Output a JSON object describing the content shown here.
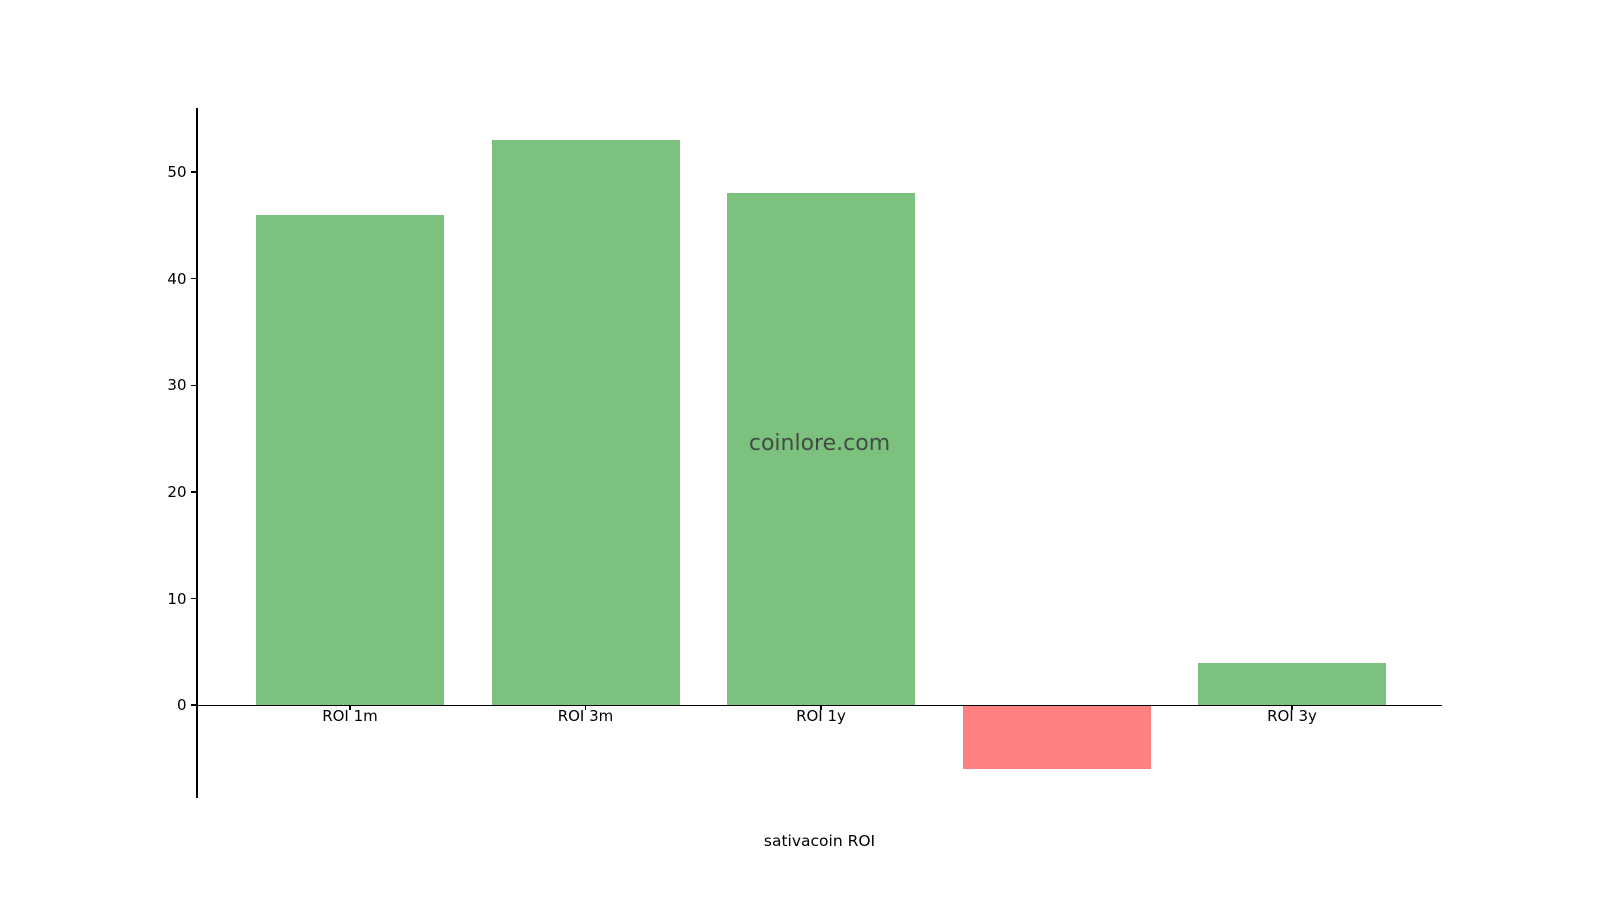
{
  "watermark": "coinlore.com",
  "chart_data": {
    "type": "bar",
    "title": "sativacoin ROI",
    "title_position": "bottom",
    "categories": [
      "ROI 1m",
      "ROI 3m",
      "ROI 1y",
      "",
      "ROI 3y"
    ],
    "values": [
      46,
      53,
      48,
      -6,
      4
    ],
    "yticks": [
      0,
      10,
      20,
      30,
      40,
      50
    ],
    "ylim": [
      -8.7,
      56
    ],
    "xlabel": "",
    "ylabel": "",
    "grid": false,
    "legend": "none",
    "colors": {
      "positive_bar": "#7dc17e",
      "negative_bar": "#ff8080",
      "axis": "#000000",
      "tick_text": "#000000",
      "watermark_text": "#373737"
    },
    "watermark": "coinlore.com"
  }
}
